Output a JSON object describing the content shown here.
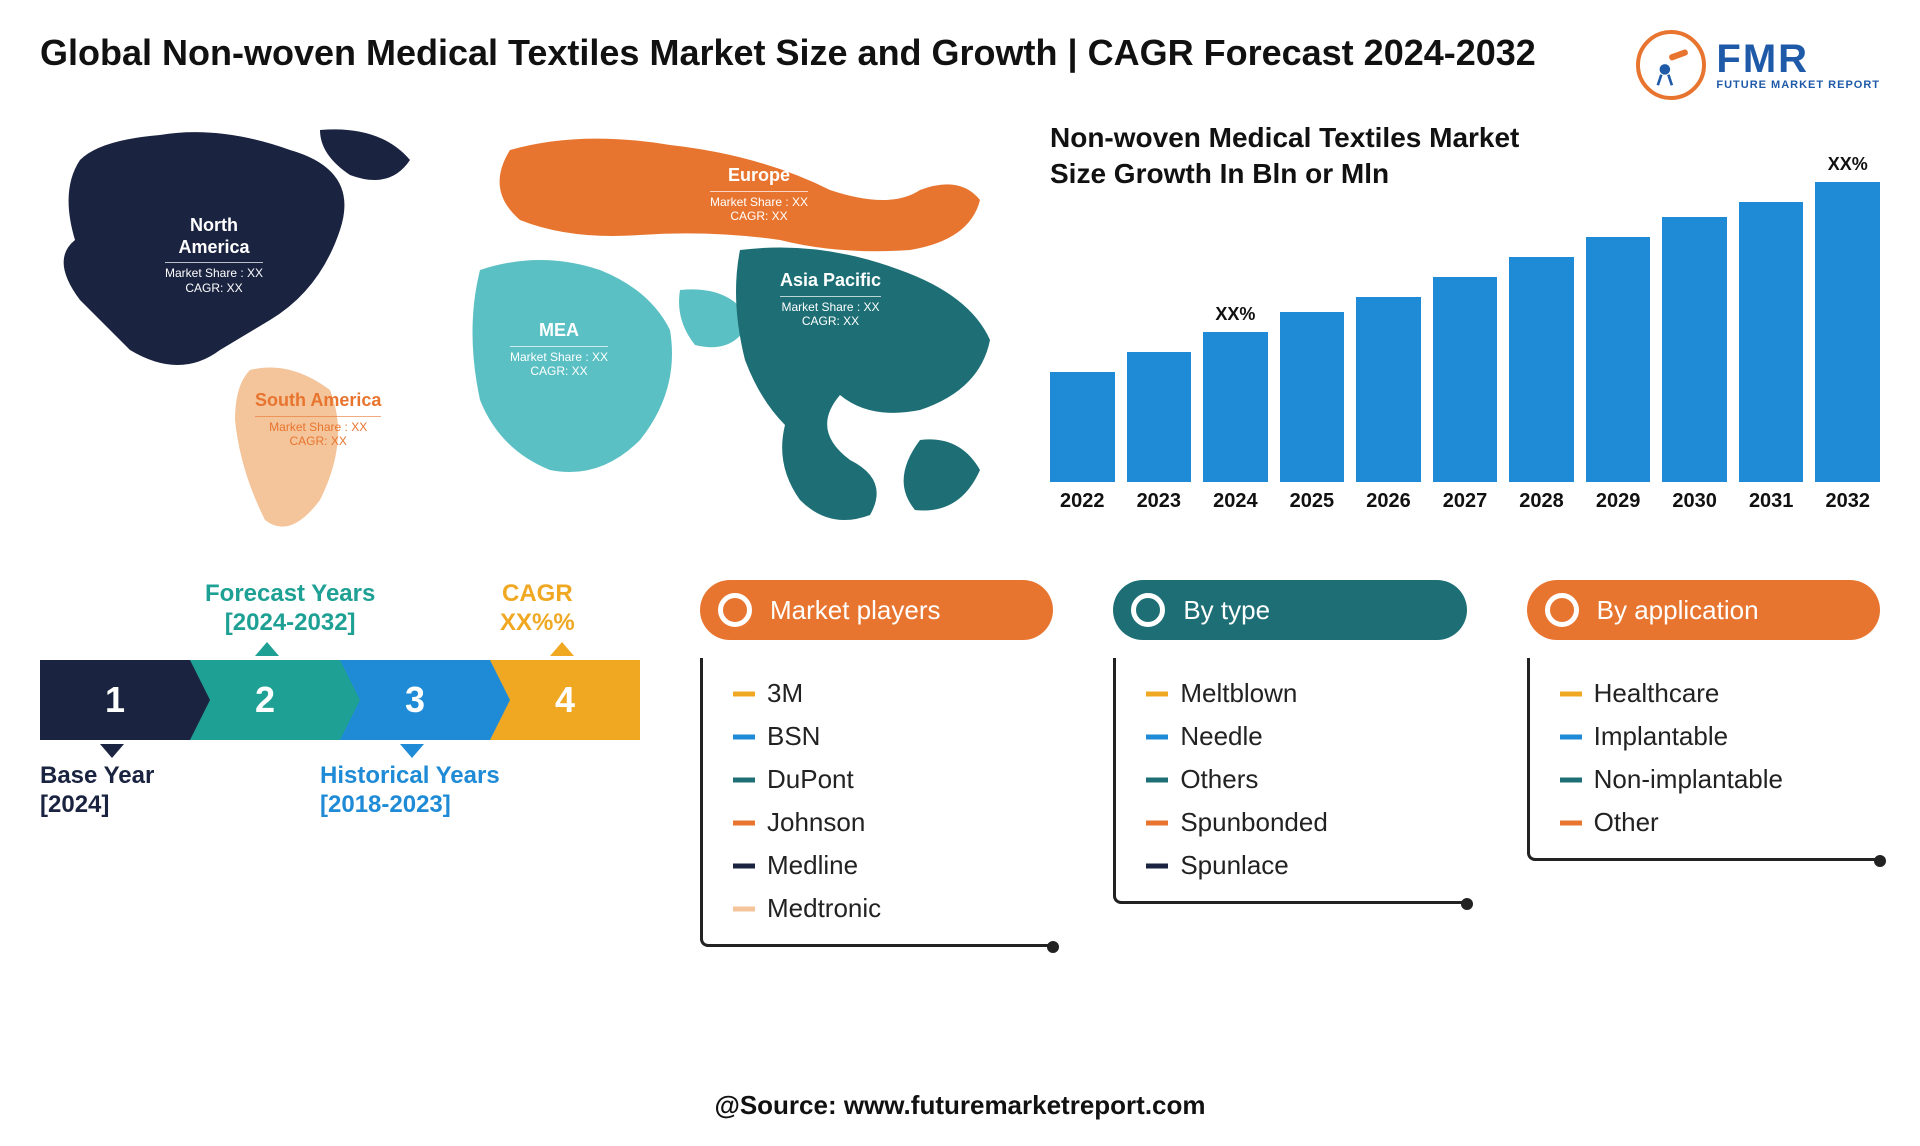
{
  "title": "Global Non-woven Medical Textiles Market Size and Growth | CAGR Forecast 2024-2032",
  "logo": {
    "fmr": "FMR",
    "sub": "FUTURE MARKET REPORT"
  },
  "map": {
    "regions": [
      {
        "key": "na",
        "name": "North\nAmerica",
        "info": "Market Share : XX\nCAGR: XX",
        "color": "#1a2340"
      },
      {
        "key": "sa",
        "name": "South America",
        "info": "Market Share : XX\nCAGR: XX",
        "color": "#f4c49a"
      },
      {
        "key": "eu",
        "name": "Europe",
        "info": "Market Share : XX\nCAGR: XX",
        "color": "#e8752f"
      },
      {
        "key": "mea",
        "name": "MEA",
        "info": "Market Share : XX\nCAGR: XX",
        "color": "#5bc0c4"
      },
      {
        "key": "ap",
        "name": "Asia Pacific",
        "info": "Market Share : XX\nCAGR: XX",
        "color": "#1d6f75"
      }
    ]
  },
  "bar_chart": {
    "title": "Non-woven Medical Textiles Market Size Growth In Bln or Mln",
    "color": "#1f8bd6",
    "years": [
      "2022",
      "2023",
      "2024",
      "2025",
      "2026",
      "2027",
      "2028",
      "2029",
      "2030",
      "2031",
      "2032"
    ],
    "values": [
      110,
      130,
      150,
      170,
      185,
      205,
      225,
      245,
      265,
      280,
      300
    ],
    "ymax": 300,
    "annotations": [
      {
        "year": "2024",
        "text": "XX%"
      },
      {
        "year": "2032",
        "text": "XX%"
      }
    ]
  },
  "timeline": {
    "forecast": {
      "label": "Forecast Years",
      "range": "[2024-2032]",
      "color": "#1ea194"
    },
    "cagr": {
      "label": "CAGR",
      "range": "XX%%",
      "color": "#f0a823"
    },
    "base": {
      "label": "Base Year",
      "range": "[2024]",
      "color": "#1a2340"
    },
    "hist": {
      "label": "Historical Years",
      "range": "[2018-2023]",
      "color": "#1f8bd6"
    },
    "segments": [
      {
        "num": "1",
        "color": "#1a2340"
      },
      {
        "num": "2",
        "color": "#1ea194"
      },
      {
        "num": "3",
        "color": "#1f8bd6"
      },
      {
        "num": "4",
        "color": "#f0a823"
      }
    ]
  },
  "categories": [
    {
      "title": "Market players",
      "pill_color": "#e8752f",
      "items": [
        "3M",
        "BSN",
        "DuPont",
        "Johnson",
        "Medline",
        "Medtronic"
      ],
      "bullet_colors": [
        "#f0a823",
        "#1f8bd6",
        "#1d6f75",
        "#e8752f",
        "#1a2340",
        "#f4c49a"
      ]
    },
    {
      "title": "By type",
      "pill_color": "#1d6f75",
      "items": [
        "Meltblown",
        "Needle",
        "Others",
        "Spunbonded",
        "Spunlace"
      ],
      "bullet_colors": [
        "#f0a823",
        "#1f8bd6",
        "#1d6f75",
        "#e8752f",
        "#1a2340"
      ]
    },
    {
      "title": "By application",
      "pill_color": "#e8752f",
      "items": [
        "Healthcare",
        "Implantable",
        "Non-implantable",
        "Other"
      ],
      "bullet_colors": [
        "#f0a823",
        "#1f8bd6",
        "#1d6f75",
        "#e8752f"
      ]
    }
  ],
  "source": "@Source: www.futuremarketreport.com"
}
